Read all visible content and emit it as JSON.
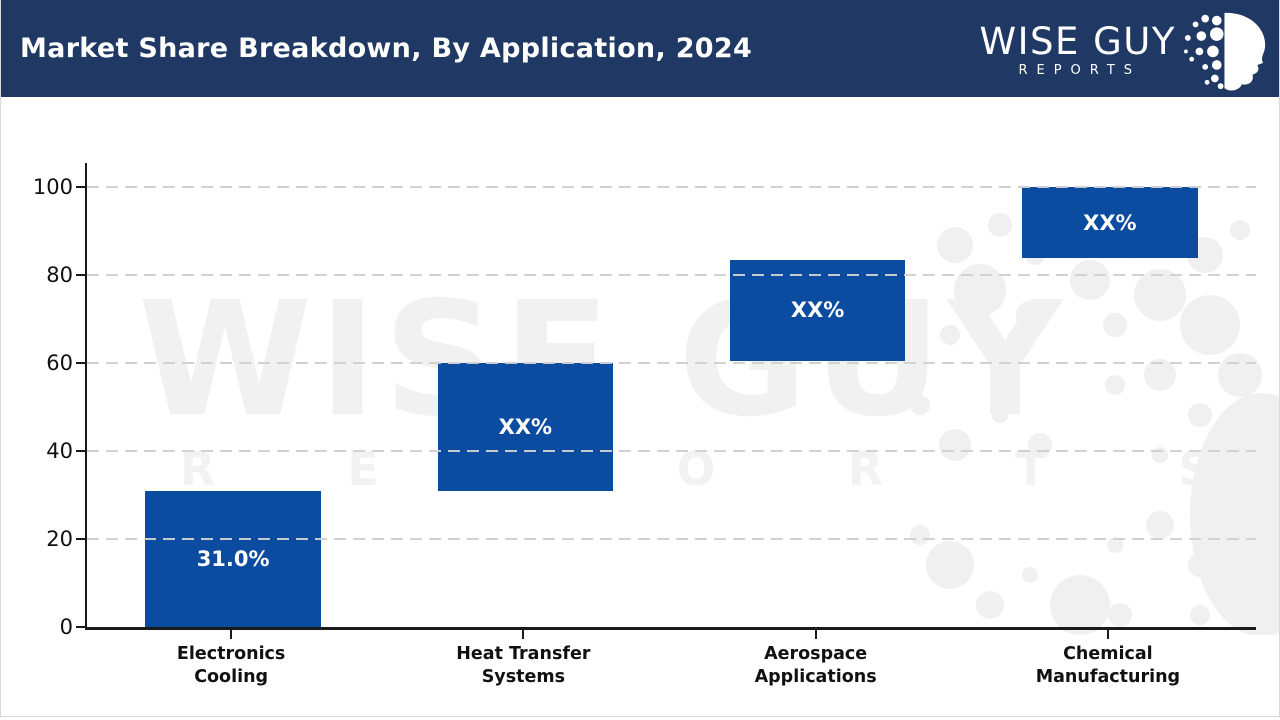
{
  "header": {
    "title": "Market Share Breakdown, By Application, 2024",
    "logo": {
      "line1": "WISE GUY",
      "line2": "REPORTS"
    }
  },
  "watermark": {
    "line1": "WISE GUY",
    "line2": "R E P O R T S"
  },
  "chart_data": {
    "type": "bar",
    "subtype": "waterfall",
    "title": "Market Share Breakdown, By Application, 2024",
    "categories": [
      "Electronics\nCooling",
      "Heat Transfer\nSystems",
      "Aerospace\nApplications",
      "Chemical\nManufacturing"
    ],
    "segments": [
      {
        "start": 0,
        "end": 31,
        "label": "31.0%"
      },
      {
        "start": 31,
        "end": 60,
        "label": "XX%"
      },
      {
        "start": 60.5,
        "end": 83.5,
        "label": "XX%"
      },
      {
        "start": 83.8,
        "end": 100,
        "label": "XX%"
      }
    ],
    "yticks": [
      0,
      20,
      40,
      60,
      80,
      100
    ],
    "ylim": [
      0,
      105.5
    ],
    "xlabel": "",
    "ylabel": "",
    "legend": "none",
    "grid": "horizontal dashed, drawn over bars",
    "bar_color": "#0b4ba0",
    "value_label_color": "#ffffff"
  },
  "colors": {
    "header_bg": "#1f3864",
    "bar_blue": "#0b4ba0",
    "gridline": "#d0d0d0",
    "axis": "#1a1a1a",
    "tick_text": "#111111",
    "watermark": "#f1f1f1",
    "frame_border": "#d9d9d9"
  }
}
